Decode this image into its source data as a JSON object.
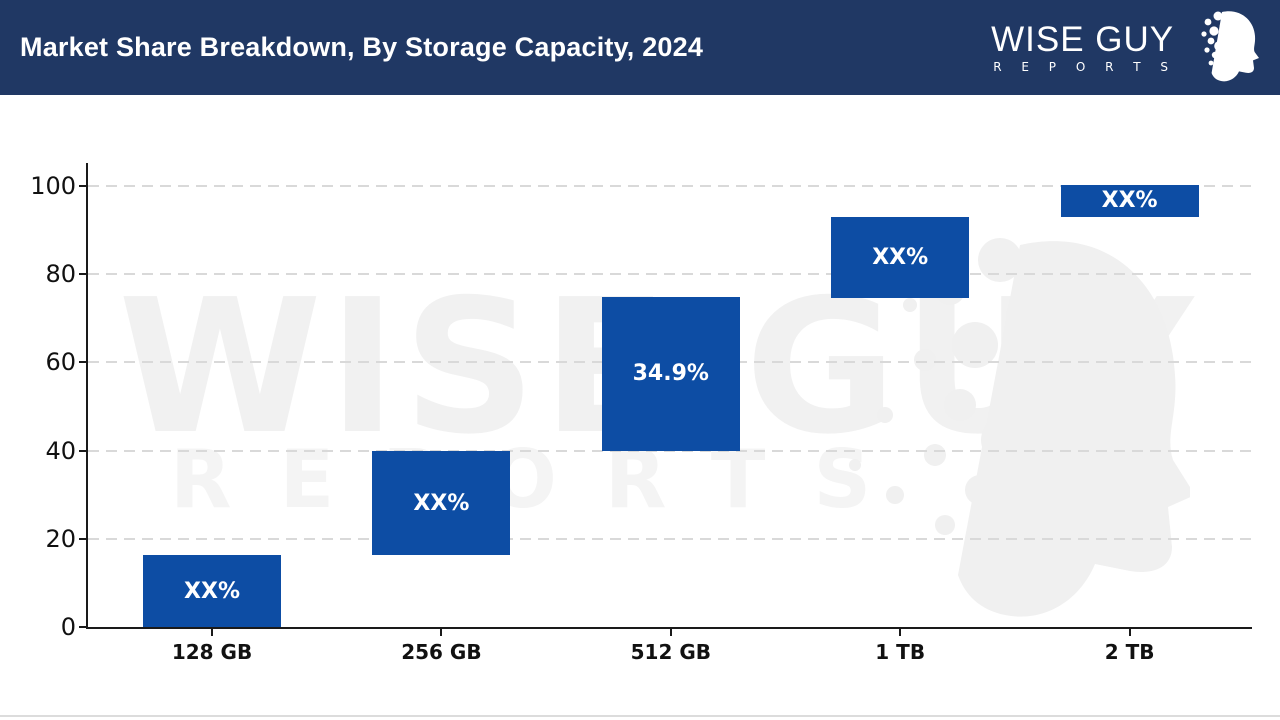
{
  "header": {
    "title": "Market Share Breakdown, By Storage Capacity, 2024",
    "logo": {
      "name": "WISE GUY",
      "tagline": "R E P O R T S"
    }
  },
  "watermark": {
    "line1": "WISE GUY",
    "line2": "REPORTS"
  },
  "chart_data": {
    "type": "bar",
    "subtype": "floating-segment-waterfall",
    "title": "Market Share Breakdown, By Storage Capacity, 2024",
    "categories": [
      "128 GB",
      "256 GB",
      "512 GB",
      "1 TB",
      "2 TB"
    ],
    "segments": [
      {
        "category": "128 GB",
        "start": 0,
        "end": 16.3,
        "label": "XX%"
      },
      {
        "category": "256 GB",
        "start": 16.3,
        "end": 39.8,
        "label": "XX%"
      },
      {
        "category": "512 GB",
        "start": 40.0,
        "end": 74.9,
        "label": "34.9%"
      },
      {
        "category": "1 TB",
        "start": 74.6,
        "end": 93.0,
        "label": "XX%"
      },
      {
        "category": "2 TB",
        "start": 93.0,
        "end": 100.2,
        "label": "XX%"
      }
    ],
    "xlabel": "",
    "ylabel": "",
    "yticks": [
      0,
      20,
      40,
      60,
      80,
      100
    ],
    "ylim": [
      0,
      105
    ],
    "grid": "horizontal-dashed",
    "legend": "none"
  },
  "colors": {
    "header_bg": "#203864",
    "bar": "#0d4da4",
    "bar_label": "#ffffff",
    "gridline": "#d9d9d9",
    "axis": "#1a1a1a",
    "tick_text": "#111111",
    "watermark": "#f1f1f1"
  }
}
